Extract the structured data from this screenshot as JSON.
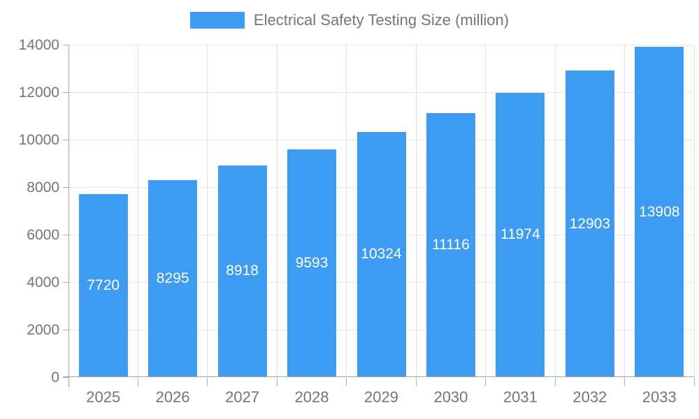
{
  "chart_data": {
    "type": "bar",
    "title": "Electrical Safety Testing Size (million)",
    "categories": [
      "2025",
      "2026",
      "2027",
      "2028",
      "2029",
      "2030",
      "2031",
      "2032",
      "2033"
    ],
    "series": [
      {
        "name": "Electrical Safety Testing Size (million)",
        "values": [
          7720,
          8295,
          8918,
          9593,
          10324,
          11116,
          11974,
          12903,
          13908
        ]
      }
    ],
    "xlabel": "",
    "ylabel": "",
    "ylim": [
      0,
      14000
    ],
    "yticks": [
      0,
      2000,
      4000,
      6000,
      8000,
      10000,
      12000,
      14000
    ],
    "grid": true,
    "legend_position": "top-center",
    "bar_label_position": "inside-center"
  },
  "legend": {
    "label": "Electrical Safety Testing Size (million)"
  },
  "colors": {
    "bar": "#3d9cf1",
    "grid_h": "#e6e6e6",
    "grid_v": "#e0e0e0",
    "axis": "#a3a3a3",
    "tick": "#b0b0b0",
    "text": "#757575",
    "bar_label": "#ffffff",
    "background": "#ffffff"
  }
}
